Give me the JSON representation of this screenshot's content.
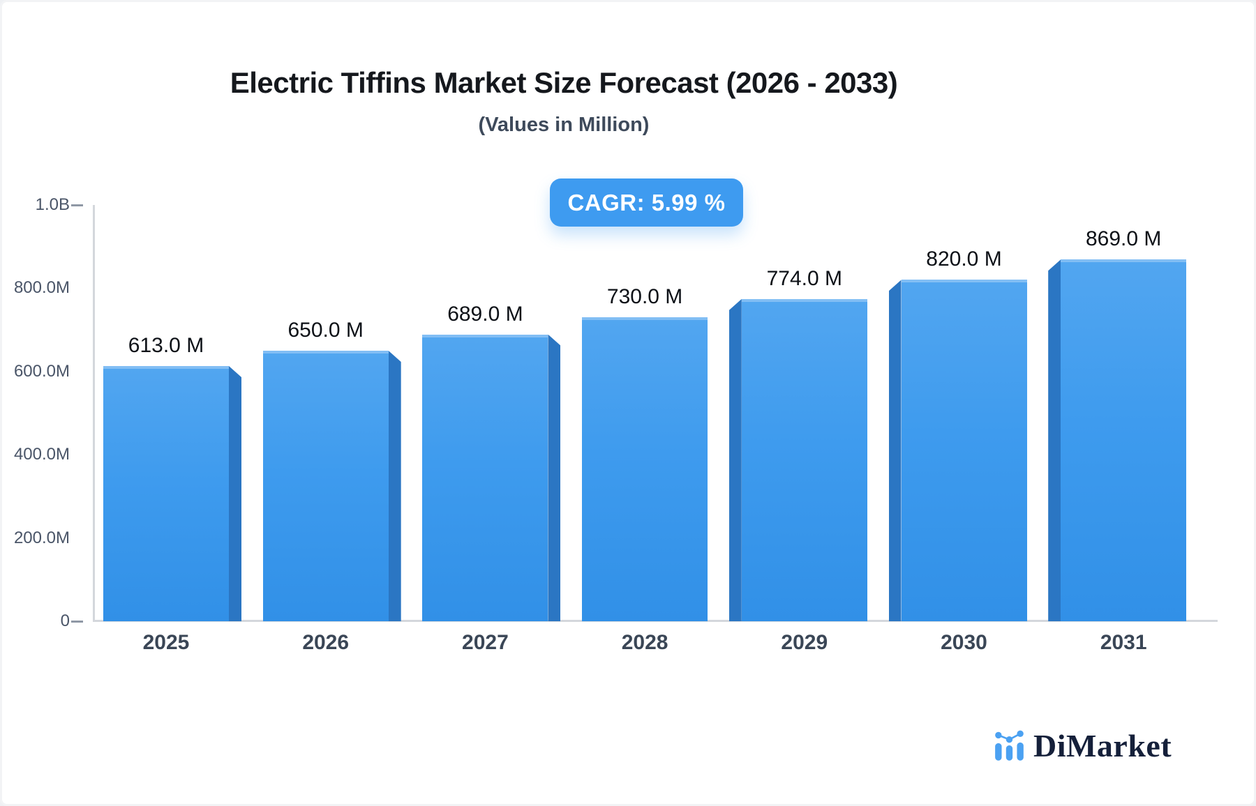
{
  "header": {
    "title": "Electric Tiffins Market Size Forecast (2026 - 2033)",
    "subtitle": "(Values in Million)"
  },
  "badge": {
    "label": "CAGR: 5.99 %"
  },
  "chart_data": {
    "type": "bar",
    "title": "Electric Tiffins Market Size Forecast (2026 - 2033)",
    "subtitle": "(Values in Million)",
    "categories": [
      "2025",
      "2026",
      "2027",
      "2028",
      "2029",
      "2030",
      "2031"
    ],
    "values": [
      613,
      650,
      689,
      730,
      774,
      820,
      869
    ],
    "value_labels": [
      "613.0 M",
      "650.0 M",
      "689.0 M",
      "730.0 M",
      "774.0 M",
      "820.0 M",
      "869.0 M"
    ],
    "cagr_label": "CAGR: 5.99 %",
    "y_axis": {
      "ylim": [
        0,
        1000
      ],
      "ticks": [
        {
          "value": 1000,
          "label": "1.0B"
        },
        {
          "value": 800,
          "label": "800.0M"
        },
        {
          "value": 600,
          "label": "600.0M"
        },
        {
          "value": 400,
          "label": "400.0M"
        },
        {
          "value": 200,
          "label": "200.0M"
        },
        {
          "value": 0,
          "label": "0"
        }
      ]
    },
    "grid": false,
    "legend": "none",
    "colors": {
      "bar_face_top": "#52a6f0",
      "bar_face_bottom": "#3190e7",
      "bar_side": "#2b76c3",
      "badge_bg": "#3e9bf0",
      "axis_line": "#d4d7dc",
      "tick_text": "#4a5568",
      "value_text": "#0d1117"
    }
  },
  "logo": {
    "text": "DiMarket"
  }
}
